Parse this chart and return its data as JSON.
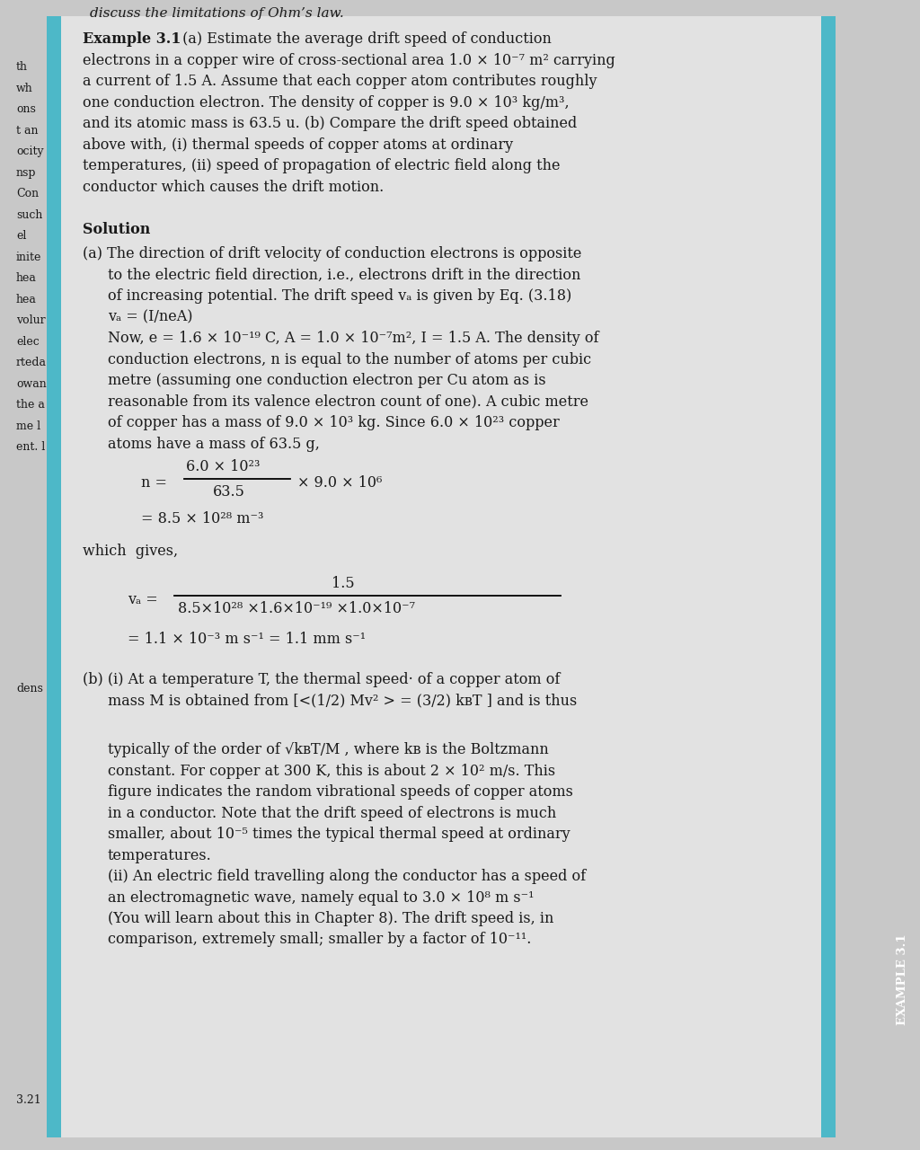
{
  "background_color": "#c8c8c8",
  "content_background": "#e2e2e2",
  "left_bar_color": "#4db8c8",
  "right_bar_color": "#4db8c8",
  "page_top_text": "discuss the limitations of Ohm’s law.",
  "left_margin_words": [
    "th",
    "wh",
    "ons",
    "t an",
    "ocity",
    "nsp",
    "Con",
    "such",
    "el",
    "inite",
    "hea",
    "hea",
    "volur",
    "elec",
    "rteda",
    "owan",
    "the a",
    "me l",
    "ent. l"
  ],
  "left_margin_word_dens": "dens",
  "left_margin_word_321": "3.21",
  "title_bold": "Example 3.1",
  "solution_bold": "Solution",
  "side_label": "EXAMPLE 3.1",
  "figsize": [
    10.24,
    12.8
  ],
  "dpi": 100
}
